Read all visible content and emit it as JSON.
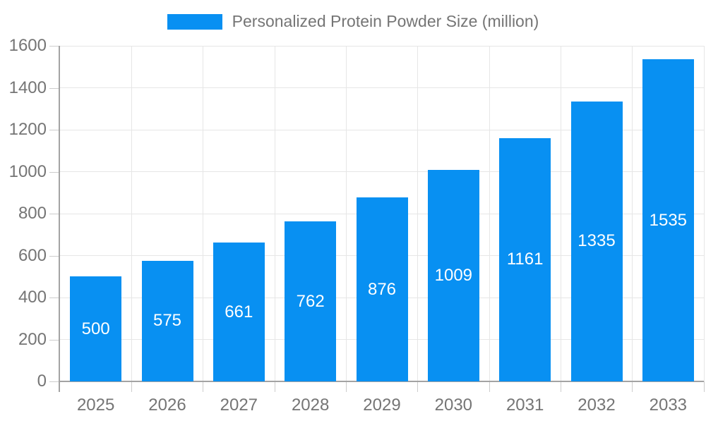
{
  "legend": {
    "label": "Personalized Protein Powder Size (million)"
  },
  "chart_data": {
    "type": "bar",
    "title": "",
    "series_name": "Personalized Protein Powder Size (million)",
    "categories": [
      "2025",
      "2026",
      "2027",
      "2028",
      "2029",
      "2030",
      "2031",
      "2032",
      "2033"
    ],
    "values": [
      500,
      575,
      661,
      762,
      876,
      1009,
      1161,
      1335,
      1535
    ],
    "xlabel": "",
    "ylabel": "",
    "ylim": [
      0,
      1600
    ],
    "yticks": [
      0,
      200,
      400,
      600,
      800,
      1000,
      1200,
      1400,
      1600
    ],
    "grid": "both",
    "legend_position": "top-center",
    "value_labels": "inside-center",
    "colors": {
      "bar": "#0890F2",
      "value_label": "#FFFFFF",
      "axis_label": "#757575",
      "legend_text": "#757575",
      "gridline": "#E6E6E6",
      "axis_line": "#A3A3A3",
      "tick": "#CCCCCC",
      "background": "#FFFFFF"
    }
  }
}
